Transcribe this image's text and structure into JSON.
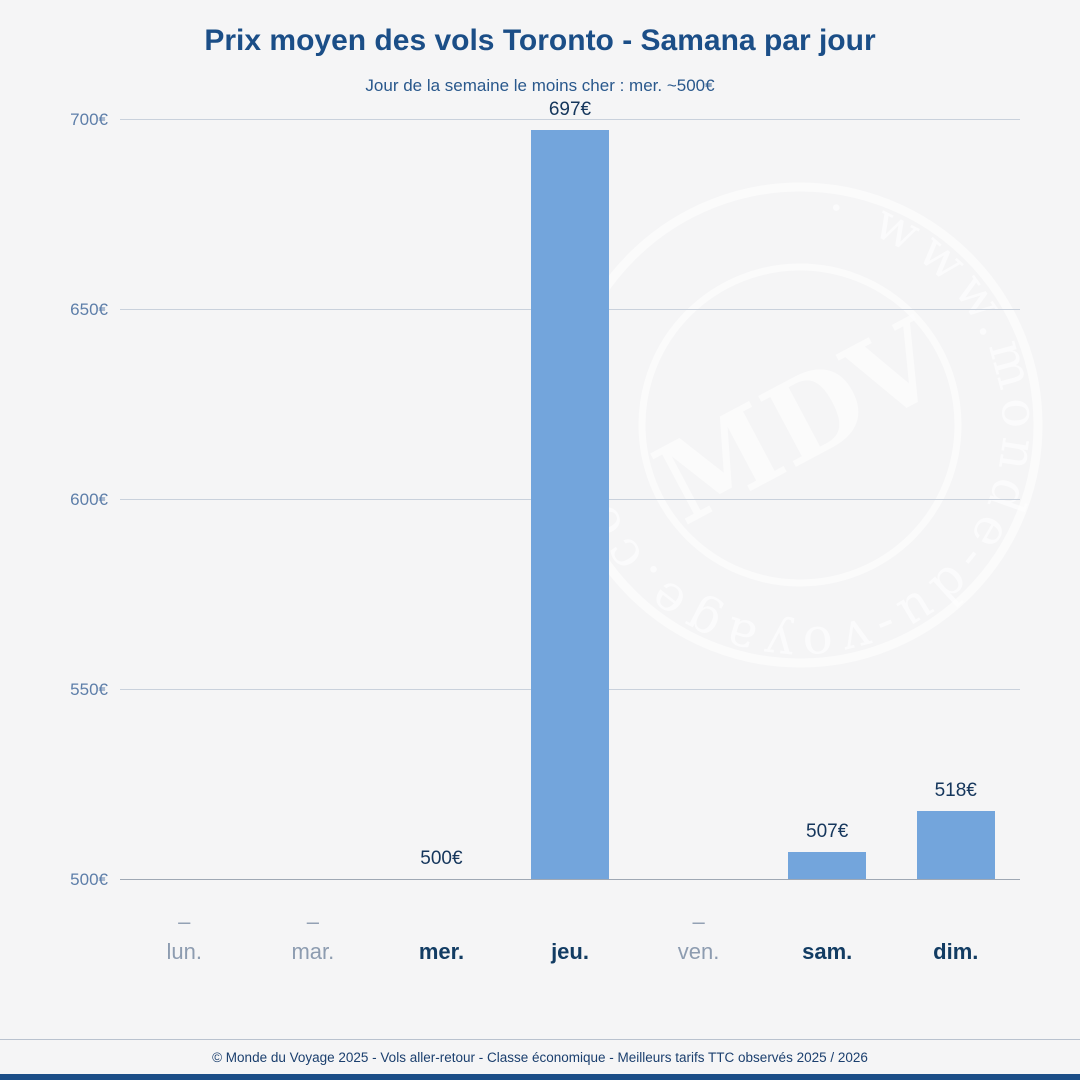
{
  "chart_data": {
    "type": "bar",
    "title": "Prix moyen des vols Toronto - Samana par jour",
    "subtitle": "Jour de la semaine le moins cher : mer. ~500€",
    "categories": [
      "lun.",
      "mar.",
      "mer.",
      "jeu.",
      "ven.",
      "sam.",
      "dim."
    ],
    "values": [
      null,
      null,
      500,
      697,
      null,
      507,
      518
    ],
    "bar_labels": [
      "",
      "",
      "500€",
      "697€",
      "",
      "507€",
      "518€"
    ],
    "null_marker": "–",
    "ylim": [
      500,
      700
    ],
    "yticks": [
      500,
      550,
      600,
      650,
      700
    ],
    "ytick_labels": [
      "500€",
      "550€",
      "600€",
      "650€",
      "700€"
    ],
    "bar_color": "#73a5dc",
    "grid": true,
    "legend": "none",
    "xlabel": "",
    "ylabel": ""
  },
  "watermark": {
    "ring_text": "· www.monde-du-voyage.com ·",
    "center_text": "MDV"
  },
  "footer": {
    "text": "© Monde du Voyage 2025 - Vols aller-retour - Classe économique - Meilleurs tarifs TTC observés 2025 / 2026"
  }
}
